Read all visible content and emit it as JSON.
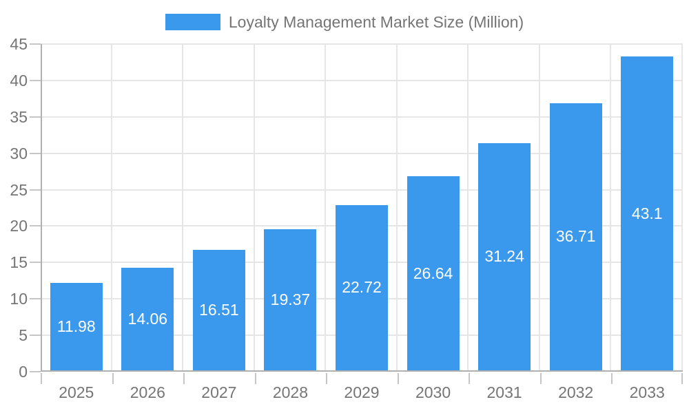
{
  "legend": {
    "label": "Loyalty Management Market Size (Million)"
  },
  "colors": {
    "background": "#ffffff",
    "bar": "#3a99ec",
    "bar_label": "#ffffff",
    "axis": "#b0b0b0",
    "grid": "#e6e6e6",
    "tick": "#c6c6c6",
    "text": "#757575"
  },
  "chart_data": {
    "type": "bar",
    "title": "Loyalty Management Market Size (Million)",
    "categories": [
      "2025",
      "2026",
      "2027",
      "2028",
      "2029",
      "2030",
      "2031",
      "2032",
      "2033"
    ],
    "values": [
      11.98,
      14.06,
      16.51,
      19.37,
      22.72,
      26.64,
      31.24,
      36.71,
      43.1
    ],
    "xlabel": "",
    "ylabel": "",
    "ylim": [
      0,
      45
    ],
    "yticks": [
      0,
      5,
      10,
      15,
      20,
      25,
      30,
      35,
      40,
      45
    ],
    "grid": true,
    "legend_position": "top",
    "bar_label_position": "inside-center"
  }
}
